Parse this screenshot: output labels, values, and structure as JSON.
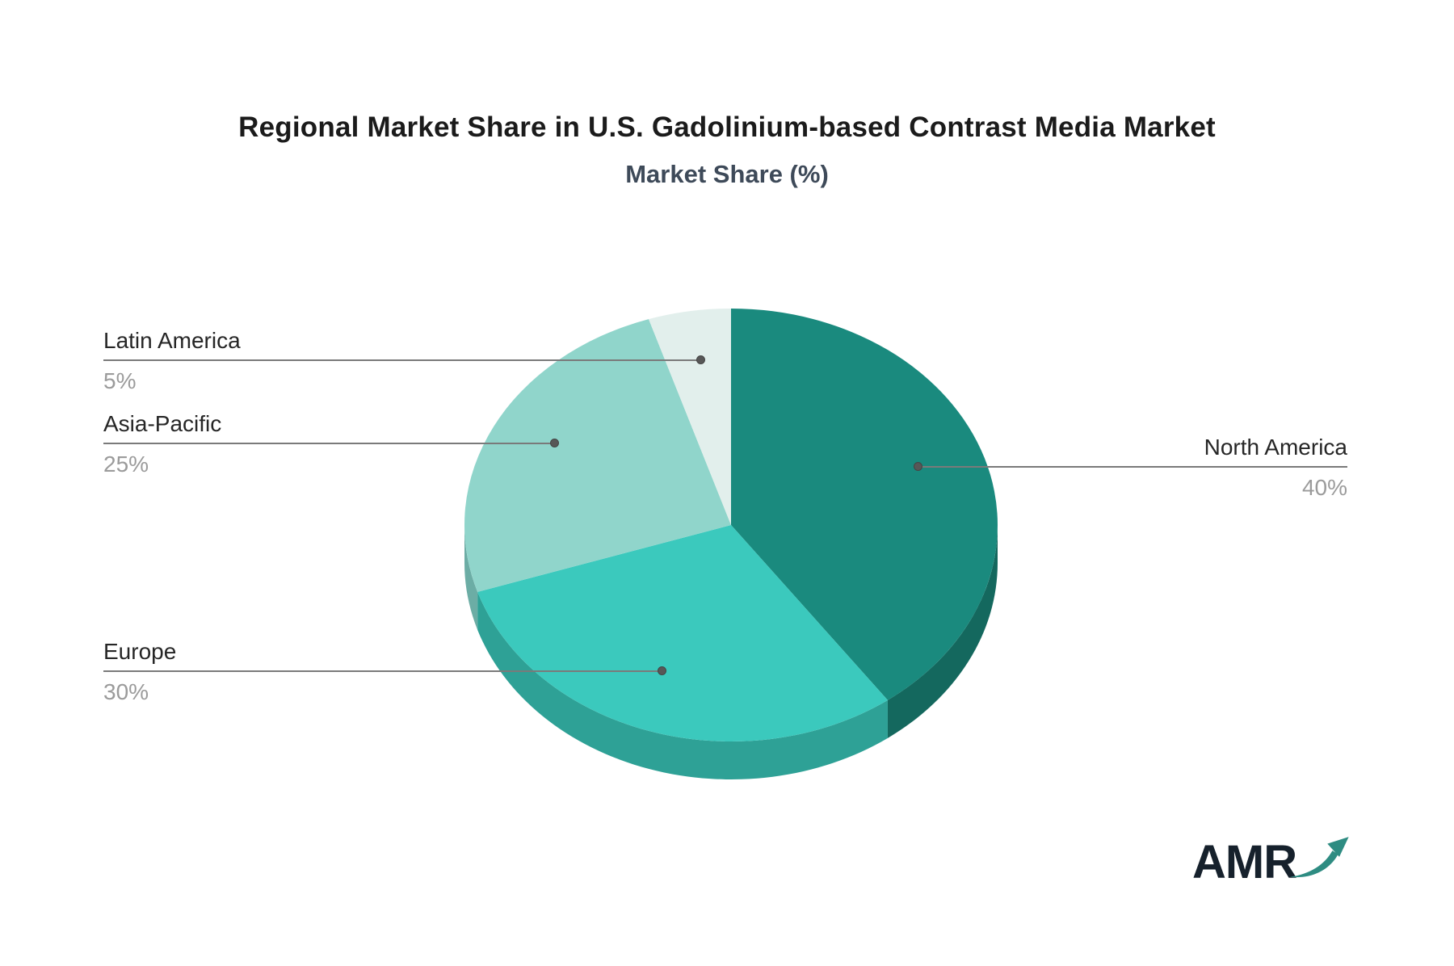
{
  "chart_data": {
    "type": "pie",
    "style": "3d",
    "title": "Regional Market Share in U.S. Gadolinium-based Contrast Media Market",
    "subtitle": "Market Share (%)",
    "legend_position": "none",
    "start_angle_deg": 0,
    "direction": "clockwise",
    "slices": [
      {
        "label": "North America",
        "value": 40,
        "pct_label": "40%",
        "color": "#1a8a7e",
        "wall_color": "#14685e"
      },
      {
        "label": "Europe",
        "value": 30,
        "pct_label": "30%",
        "color": "#3bc9bd",
        "wall_color": "#2ea196"
      },
      {
        "label": "Asia-Pacific",
        "value": 25,
        "pct_label": "25%",
        "color": "#90d5cb",
        "wall_color": "#6cada5"
      },
      {
        "label": "Latin America",
        "value": 5,
        "pct_label": "5%",
        "color": "#e2efec",
        "wall_color": "#c7ddd9"
      }
    ]
  },
  "colors": {
    "title_text": "#1b1b1b",
    "subtitle_text": "#3e4a59",
    "label_text": "#262626",
    "percent_text": "#9b9b9b",
    "leader_line": "#7a7a7a",
    "leader_dot": "#575757",
    "logo_text": "#16212c",
    "logo_arrow": "#2e8c82"
  },
  "logo": {
    "text": "AMR"
  }
}
